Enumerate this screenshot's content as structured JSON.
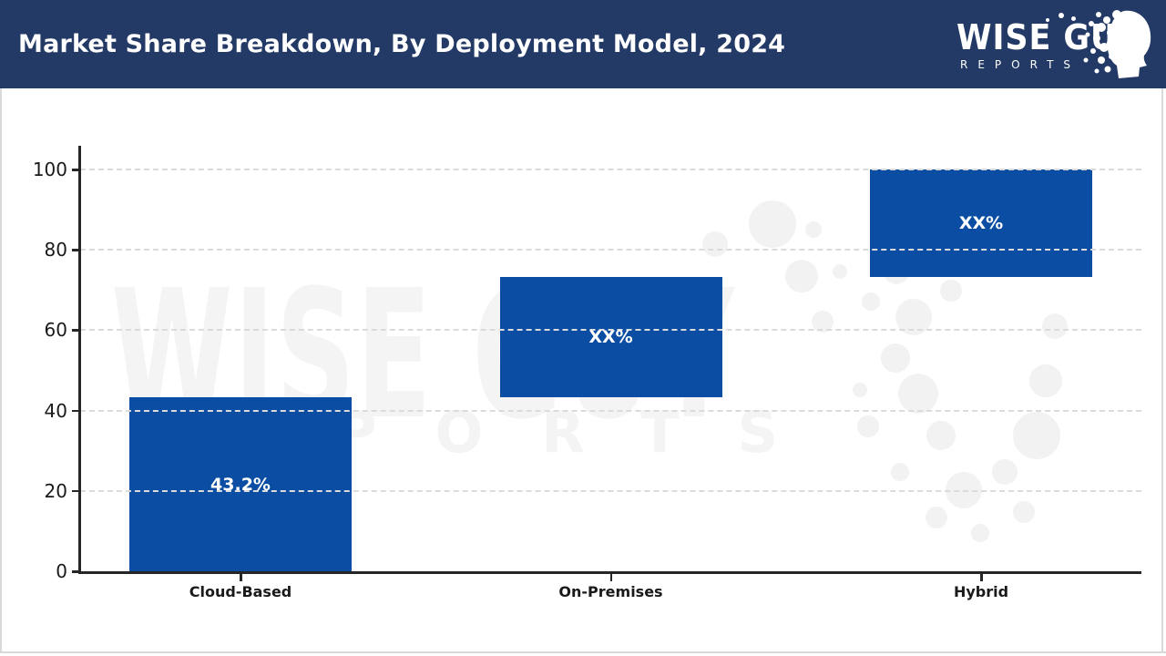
{
  "header": {
    "title": "Market Share Breakdown, By Deployment Model, 2024",
    "bg_color": "#233A66",
    "logo": {
      "line1": "WISE GUY",
      "line2": "REPORTS"
    }
  },
  "watermark": {
    "line1": "WISE GUY",
    "line2": "REPORTS"
  },
  "chart_data": {
    "type": "bar",
    "subtype": "cumulative-waterfall",
    "title": "Market Share Breakdown, By Deployment Model, 2024",
    "categories": [
      "Cloud-Based",
      "On-Premises",
      "Hybrid"
    ],
    "segments": [
      {
        "category": "Cloud-Based",
        "start": 0,
        "end": 43.2,
        "label": "43.2%"
      },
      {
        "category": "On-Premises",
        "start": 43.2,
        "end": 73.2,
        "label": "XX%"
      },
      {
        "category": "Hybrid",
        "start": 73.2,
        "end": 100,
        "label": "XX%"
      }
    ],
    "yticks": [
      0,
      20,
      40,
      60,
      80,
      100
    ],
    "ylim": [
      0,
      106
    ],
    "xlabel": "",
    "ylabel": "",
    "grid": "horizontal-dashed",
    "legend": "none",
    "bar_color": "#0B4DA2",
    "value_label_color": "#FFFFFF",
    "axis_color": "#262626",
    "grid_color": "#DBDBDB"
  }
}
